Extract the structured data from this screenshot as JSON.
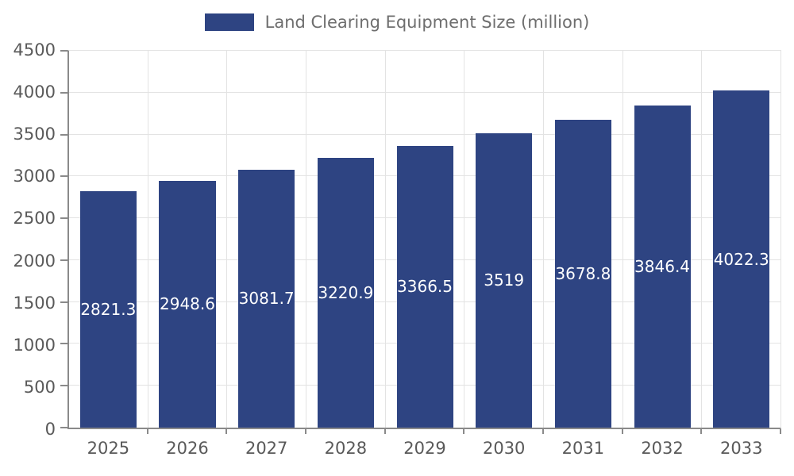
{
  "chart_data": {
    "type": "bar",
    "title": "Land Clearing Equipment Size (million)",
    "categories": [
      "2025",
      "2026",
      "2027",
      "2028",
      "2029",
      "2030",
      "2031",
      "2032",
      "2033"
    ],
    "values": [
      2821.3,
      2948.6,
      3081.7,
      3220.9,
      3366.5,
      3519,
      3678.8,
      3846.4,
      4022.3
    ],
    "value_labels": [
      "2821.3",
      "2948.6",
      "3081.7",
      "3220.9",
      "3366.5",
      "3519",
      "3678.8",
      "3846.4",
      "4022.3"
    ],
    "xlabel": "",
    "ylabel": "",
    "ylim": [
      0,
      4500
    ],
    "ytick_step": 500,
    "ytick_labels": [
      "0",
      "500",
      "1000",
      "1500",
      "2000",
      "2500",
      "3000",
      "3500",
      "4000",
      "4500"
    ],
    "grid": true,
    "legend_position": "top",
    "bar_color": "#2e4482",
    "label_color": "#ffffff",
    "axis_text_color": "#595959",
    "legend_text_color": "#6e6e6e",
    "gridline_color": "#e3e3e3"
  }
}
